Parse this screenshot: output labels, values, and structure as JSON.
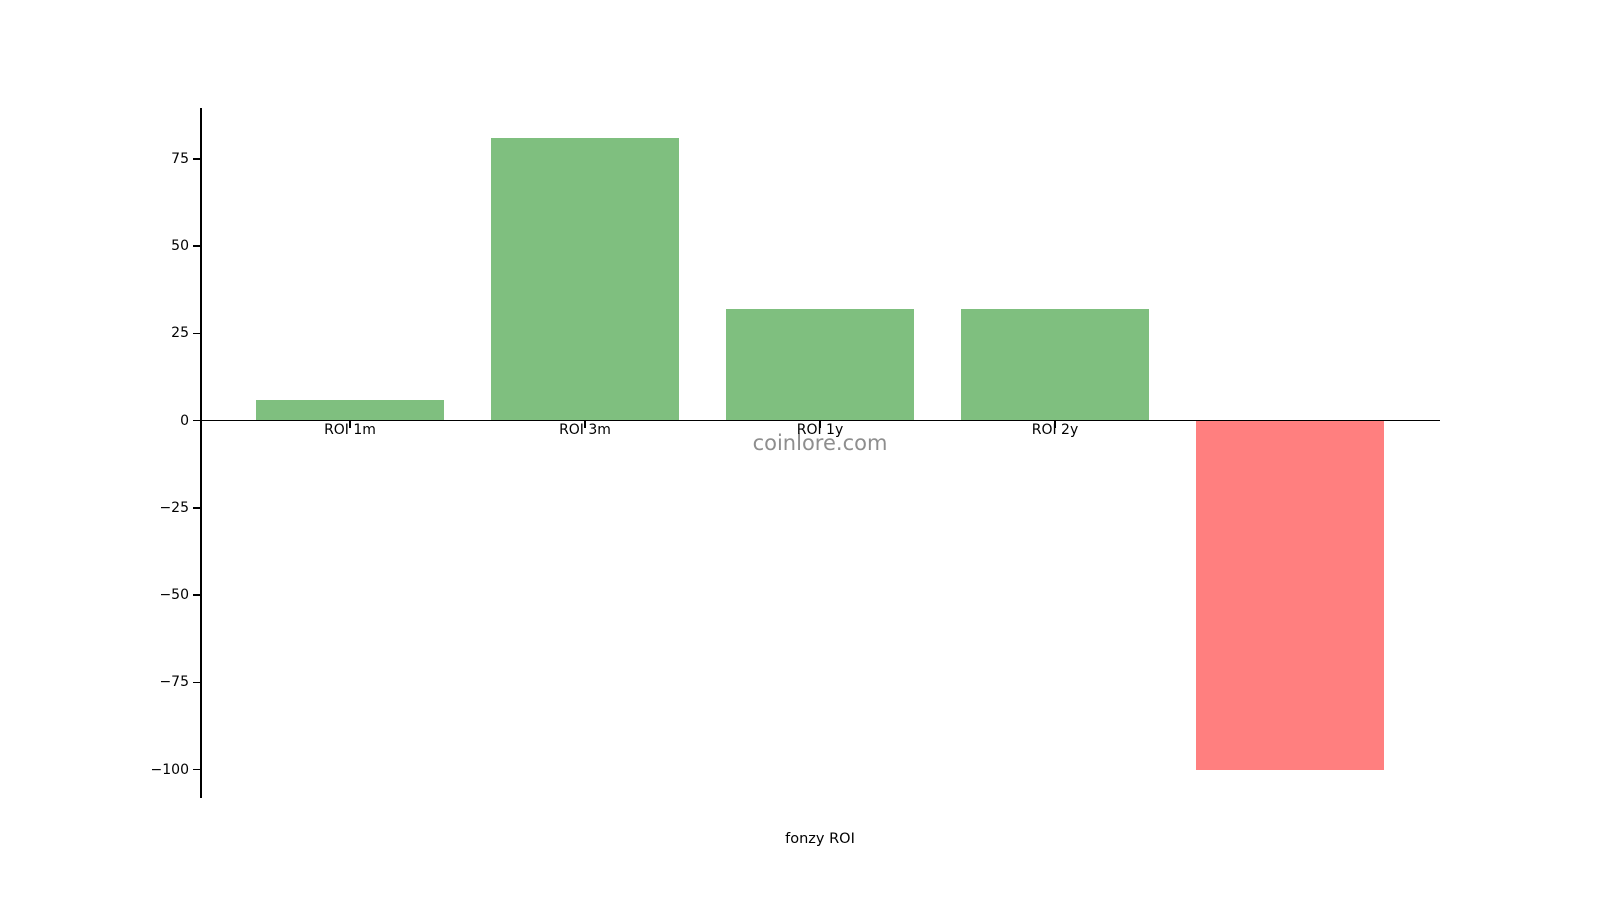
{
  "watermark": {
    "text": "coinlore.com",
    "color": "#8e8e8e"
  },
  "chart_data": {
    "type": "bar",
    "title": "",
    "xlabel": "fonzy ROI",
    "ylabel": "",
    "categories": [
      "ROI 1m",
      "ROI 3m",
      "ROI 1y",
      "ROI 2y",
      ""
    ],
    "values": [
      6,
      81,
      32,
      32,
      -100
    ],
    "bar_colors": [
      "#7fbf7f",
      "#7fbf7f",
      "#7fbf7f",
      "#7fbf7f",
      "#ff7f7f"
    ],
    "positive_color": "#7fbf7f",
    "negative_color": "#ff7f7f",
    "yticks": [
      75,
      50,
      25,
      0,
      -25,
      -50,
      -75,
      -100
    ],
    "ytick_labels": [
      "75",
      "50",
      "25",
      "0",
      "−25",
      "−50",
      "−75",
      "−100"
    ],
    "ylim": [
      -108,
      90
    ],
    "grid": false,
    "legend_position": "none",
    "background_color": "#ffffff"
  }
}
